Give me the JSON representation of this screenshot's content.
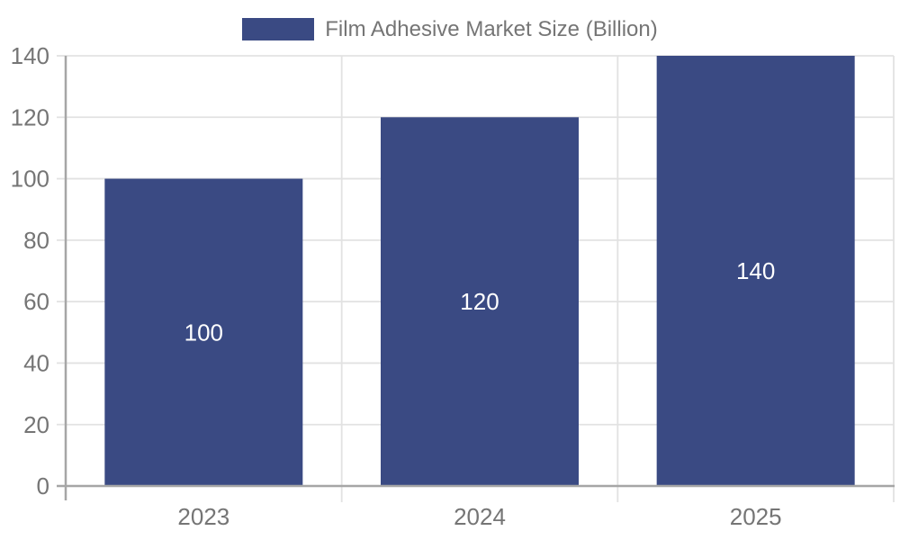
{
  "legend": {
    "label": "Film Adhesive Market Size (Billion)"
  },
  "chart_data": {
    "type": "bar",
    "title": "Film Adhesive Market Size (Billion)",
    "categories": [
      "2023",
      "2024",
      "2025"
    ],
    "series": [
      {
        "name": "Film Adhesive Market Size (Billion)",
        "values": [
          100,
          120,
          140
        ]
      }
    ],
    "values": [
      100,
      120,
      140
    ],
    "bar_value_labels": [
      "100",
      "120",
      "140"
    ],
    "xlabel": "",
    "ylabel": "",
    "ylim": [
      0,
      140
    ],
    "yticks": [
      0,
      20,
      40,
      60,
      80,
      100,
      120,
      140
    ],
    "grid": true,
    "legend_position": "top-center",
    "colors": {
      "bar": "#3A4A83",
      "value_label": "#FFFFFF",
      "tick_text": "#757575",
      "legend_text": "#757575",
      "axis_line": "#A6A6A6",
      "grid_line": "#E2E2E2",
      "background": "#FFFFFF"
    }
  }
}
